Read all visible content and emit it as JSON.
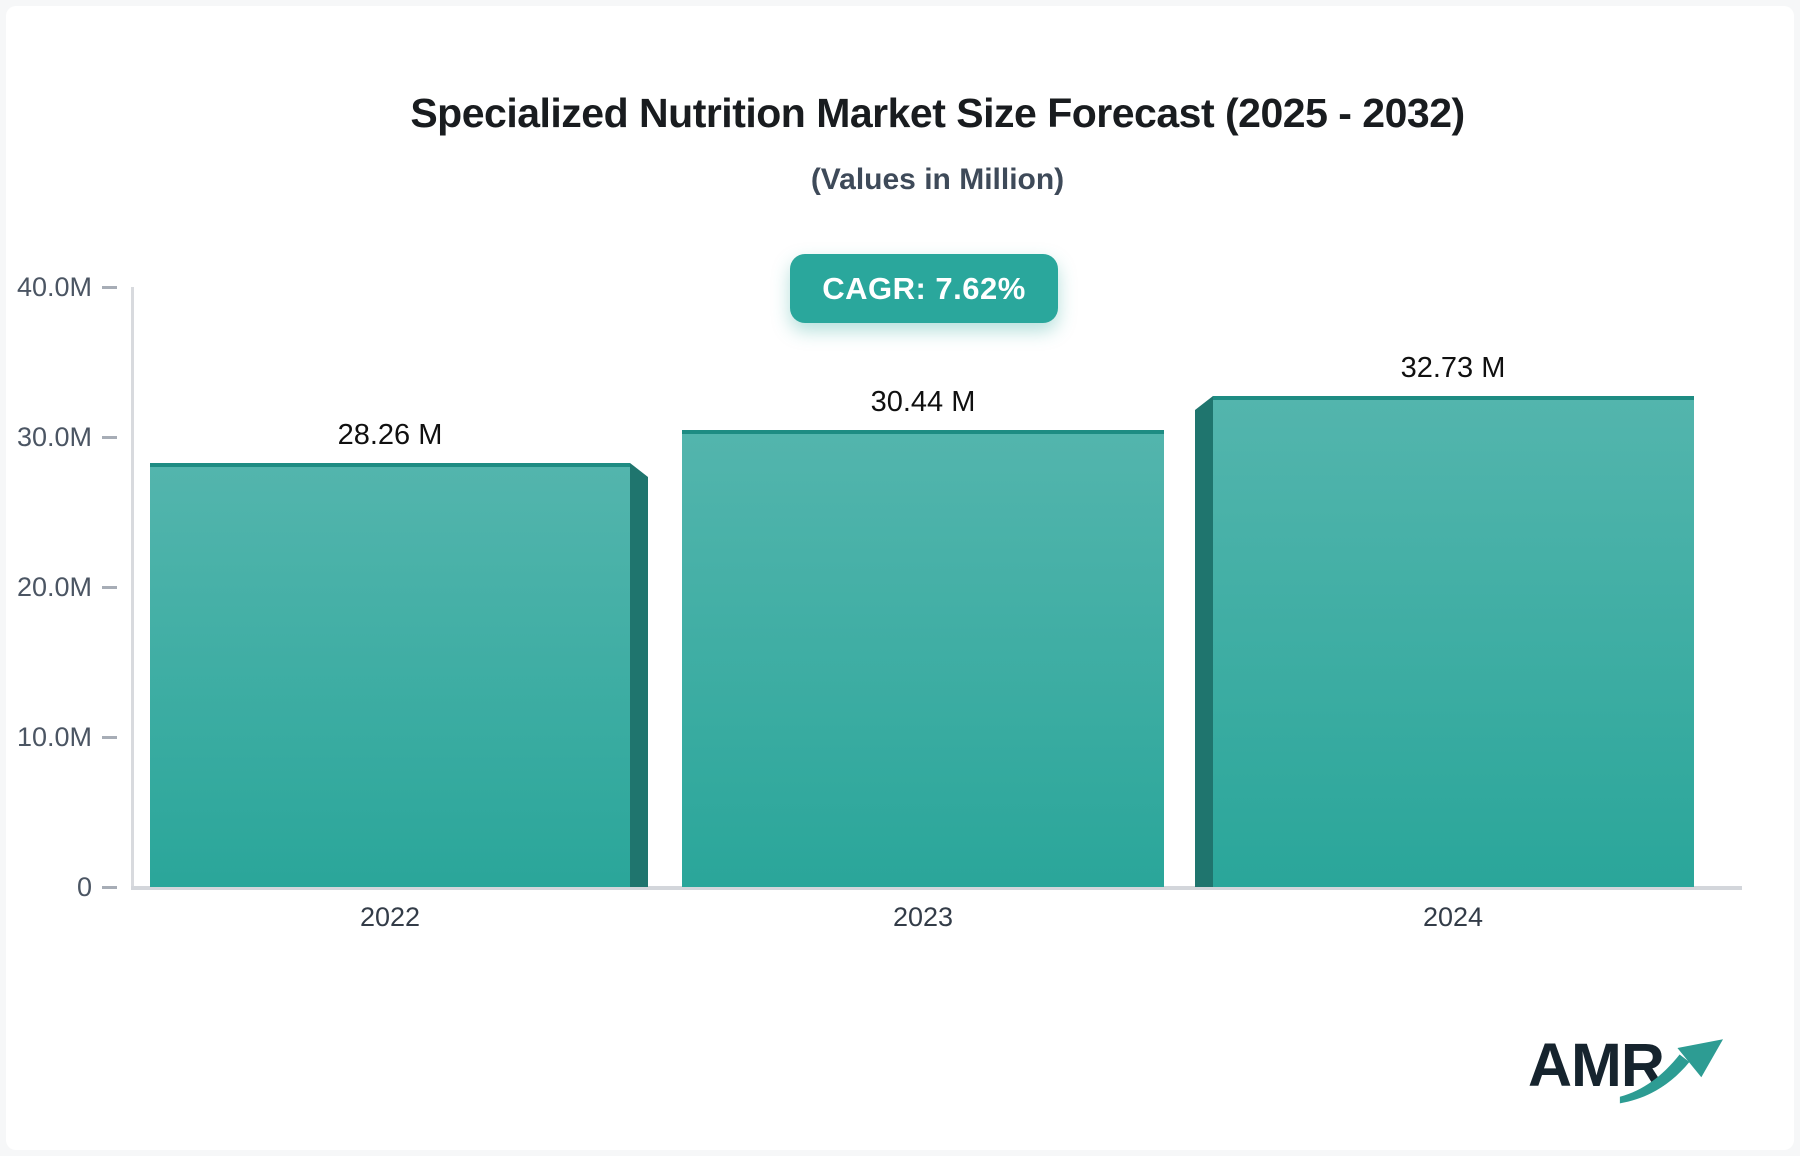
{
  "page": {
    "background": "#f6f7f8",
    "card_background": "#ffffff"
  },
  "header": {
    "title": "Specialized Nutrition Market Size Forecast (2025 - 2032)",
    "subtitle": "(Values in Million)",
    "cagr_badge": "CAGR: 7.62%"
  },
  "logo": {
    "text": "AMR"
  },
  "colors": {
    "page-bg": "#f6f7f8",
    "card-bg": "#ffffff",
    "accent": "#2aa79c",
    "bar-top": "#53b5ad",
    "bar-bottom": "#2aa69a",
    "bar-topline": "#1e8c83",
    "bar-side": "#1f756e",
    "logo-arrow": "#2d9c93"
  },
  "chart_data": {
    "type": "bar",
    "title": "Specialized Nutrition Market Size Forecast (2025 - 2032)",
    "subtitle": "(Values in Million)",
    "unit": "Million",
    "cagr": "7.62%",
    "categories": [
      "2022",
      "2023",
      "2024"
    ],
    "values": [
      28.26,
      30.44,
      32.73
    ],
    "value_labels": [
      "28.26 M",
      "30.44 M",
      "32.73 M"
    ],
    "xlabel": "",
    "ylabel": "",
    "ylim": [
      0,
      40
    ],
    "y_tick_labels": [
      "40.0M",
      "30.0M",
      "20.0M",
      "10.0M",
      "0"
    ],
    "grid": false,
    "legend": false
  }
}
